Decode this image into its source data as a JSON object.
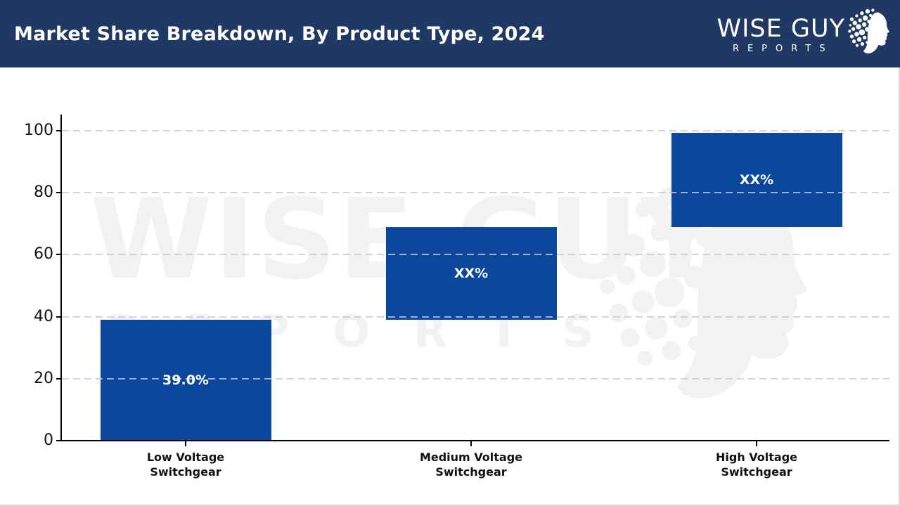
{
  "header": {
    "title": "Market Share Breakdown, By Product Type, 2024",
    "logo": {
      "line1": "WISE GUY",
      "line2": "REPORTS"
    }
  },
  "watermark": {
    "line1": "WISE GUY",
    "line2": "REPORTS"
  },
  "colors": {
    "header_bg": "#1f3864",
    "bar": "#0c479e",
    "grid": "#c9c9c9",
    "axis": "#000000",
    "watermark": "#f2f2f2",
    "border": "#d9d9d9"
  },
  "chart_data": {
    "type": "bar",
    "subtype": "floating-range-waterfall",
    "title": "Market Share Breakdown, By Product Type, 2024",
    "xlabel": "",
    "ylabel": "",
    "ylim": [
      0,
      105
    ],
    "yticks": [
      0,
      20,
      40,
      60,
      80,
      100
    ],
    "grid": "horizontal-dashed-over-bars",
    "legend": "none",
    "categories": [
      [
        "Low Voltage",
        "Switchgear"
      ],
      [
        "Medium Voltage",
        "Switchgear"
      ],
      [
        "High Voltage",
        "Switchgear"
      ]
    ],
    "series": [
      {
        "segments": [
          {
            "start": 0,
            "end": 39.0,
            "label": "39.0%"
          },
          {
            "start": 39.0,
            "end": 68.9,
            "label": "XX%"
          },
          {
            "start": 68.9,
            "end": 99.4,
            "label": "XX%"
          }
        ]
      }
    ]
  }
}
